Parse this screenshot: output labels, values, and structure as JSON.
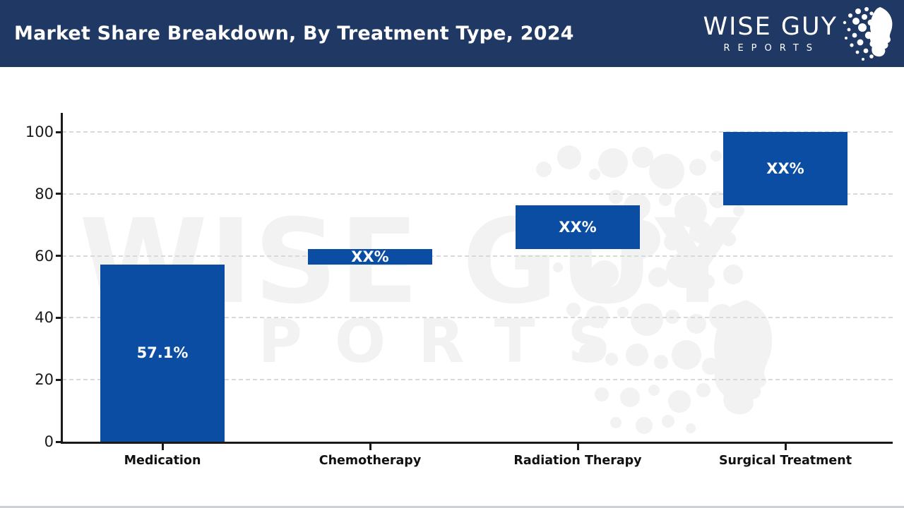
{
  "header": {
    "title": "Market Share Breakdown, By Treatment Type, 2024",
    "logo": {
      "line1": "WISE GUY",
      "line2": "REPORTS",
      "head_icon": "dotted-face-profile"
    }
  },
  "watermark": {
    "line1": "WISE GUY",
    "line2": "REPORTS"
  },
  "colors": {
    "header_bg": "#1f3864",
    "bar": "#0b4da2",
    "bar_label": "#ffffff",
    "grid": "#d9d9d9",
    "axis": "#1a1a1a",
    "watermark": "#f2f2f3"
  },
  "chart_data": {
    "type": "bar",
    "subtype": "waterfall",
    "title": "Market Share Breakdown, By Treatment Type, 2024",
    "xlabel": "",
    "ylabel": "",
    "categories": [
      "Medication",
      "Chemotherapy",
      "Radiation Therapy",
      "Surgical Treatment"
    ],
    "segments": [
      {
        "category": "Medication",
        "start": 0,
        "end": 57.1,
        "label": "57.1%"
      },
      {
        "category": "Chemotherapy",
        "start": 57.1,
        "end": 62.2,
        "label": "XX%"
      },
      {
        "category": "Radiation Therapy",
        "start": 62.2,
        "end": 76.2,
        "label": "XX%"
      },
      {
        "category": "Surgical Treatment",
        "start": 76.2,
        "end": 100,
        "label": "XX%"
      }
    ],
    "yticks": [
      0,
      20,
      40,
      60,
      80,
      100
    ],
    "ylim": [
      0,
      106
    ],
    "grid": "horizontal-dashed",
    "legend": "none"
  }
}
